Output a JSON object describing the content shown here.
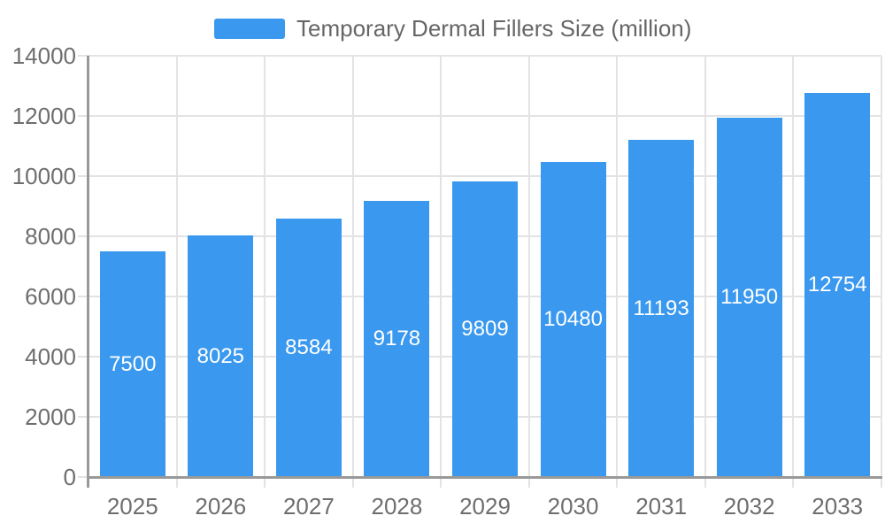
{
  "chart_data": {
    "type": "bar",
    "title": "",
    "legend": "Temporary Dermal Fillers Size (million)",
    "legend_position": "top",
    "categories": [
      "2025",
      "2026",
      "2027",
      "2028",
      "2029",
      "2030",
      "2031",
      "2032",
      "2033"
    ],
    "values": [
      7500,
      8025,
      8584,
      9178,
      9809,
      10480,
      11193,
      11950,
      12754
    ],
    "series": [
      {
        "name": "Temporary Dermal Fillers Size (million)",
        "values": [
          7500,
          8025,
          8584,
          9178,
          9809,
          10480,
          11193,
          11950,
          12754
        ]
      }
    ],
    "xlabel": "",
    "ylabel": "",
    "ylim": [
      0,
      14000
    ],
    "yticks": [
      0,
      2000,
      4000,
      6000,
      8000,
      10000,
      12000,
      14000
    ],
    "grid": true,
    "colors": {
      "bar": "#3a99ee",
      "value_label": "#ffffff",
      "axis_text": "#6e6e6e",
      "legend_text": "#666666",
      "grid_line": "#e3e3e3",
      "axis_line": "#999999",
      "background": "#ffffff"
    }
  }
}
